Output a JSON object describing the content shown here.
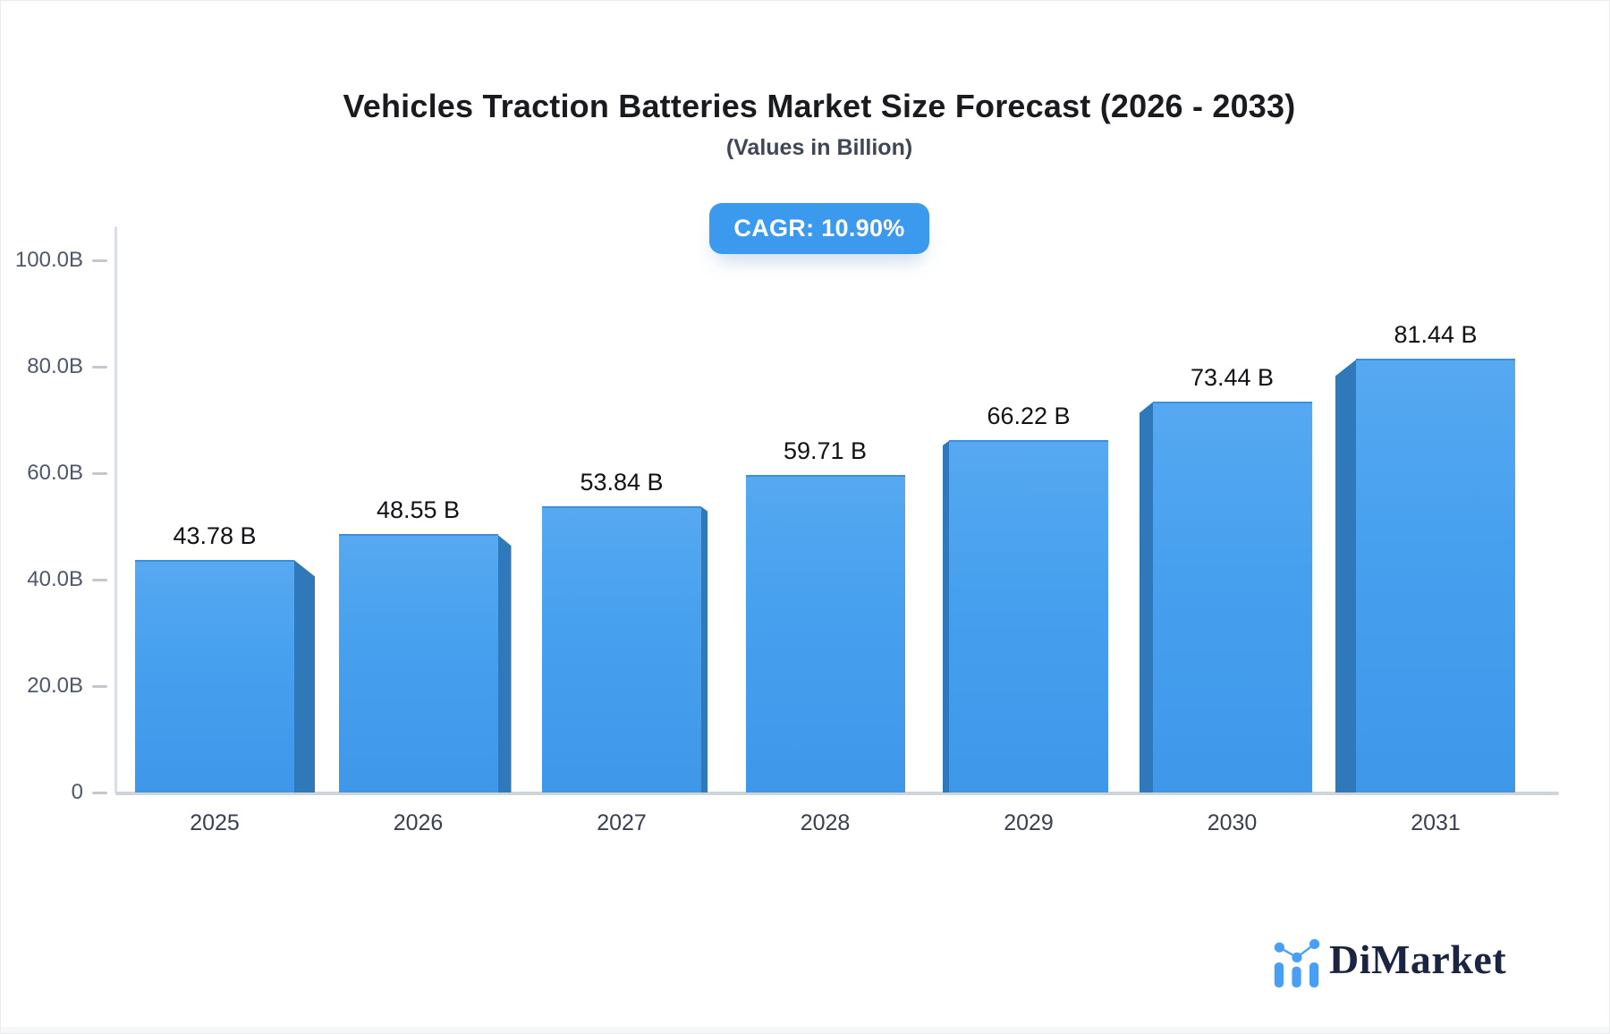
{
  "title": "Vehicles Traction Batteries Market Size Forecast (2026 - 2033)",
  "subtitle": "(Values in Billion)",
  "badge": {
    "label": "CAGR: 10.90%",
    "color": "#3b99ee"
  },
  "logo": {
    "text": "DiMarket",
    "icon": "bar-line-chart-icon",
    "icon_color": "#47a0f6",
    "text_color": "#1b2440"
  },
  "colors": {
    "bar_fill": "#46a0ee",
    "bar_side_face": "#2f78b9",
    "bar_top_edge": "#3e8fd6",
    "axis_line": "#cfd4da",
    "tick_label": "#4e586a",
    "background": "#ffffff"
  },
  "chart_data": {
    "type": "bar",
    "title": "Vehicles Traction Batteries Market Size Forecast (2026 - 2033)",
    "subtitle": "(Values in Billion)",
    "cagr": "10.90%",
    "categories": [
      "2025",
      "2026",
      "2027",
      "2028",
      "2029",
      "2030",
      "2031"
    ],
    "values": [
      43.78,
      48.55,
      53.84,
      59.71,
      66.22,
      73.44,
      81.44
    ],
    "value_labels": [
      "43.78 B",
      "48.55 B",
      "53.84 B",
      "59.71 B",
      "66.22 B",
      "73.44 B",
      "81.44 B"
    ],
    "unit": "Billion",
    "ylim": [
      0,
      100
    ],
    "ytick_values": [
      0,
      20,
      40,
      60,
      80,
      100
    ],
    "ytick_labels": [
      "0",
      "20.0B",
      "40.0B",
      "60.0B",
      "80.0B",
      "100.0B"
    ],
    "xlabel": "",
    "ylabel": "",
    "grid": false,
    "legend": false,
    "style": "3d-perspective-columns"
  }
}
